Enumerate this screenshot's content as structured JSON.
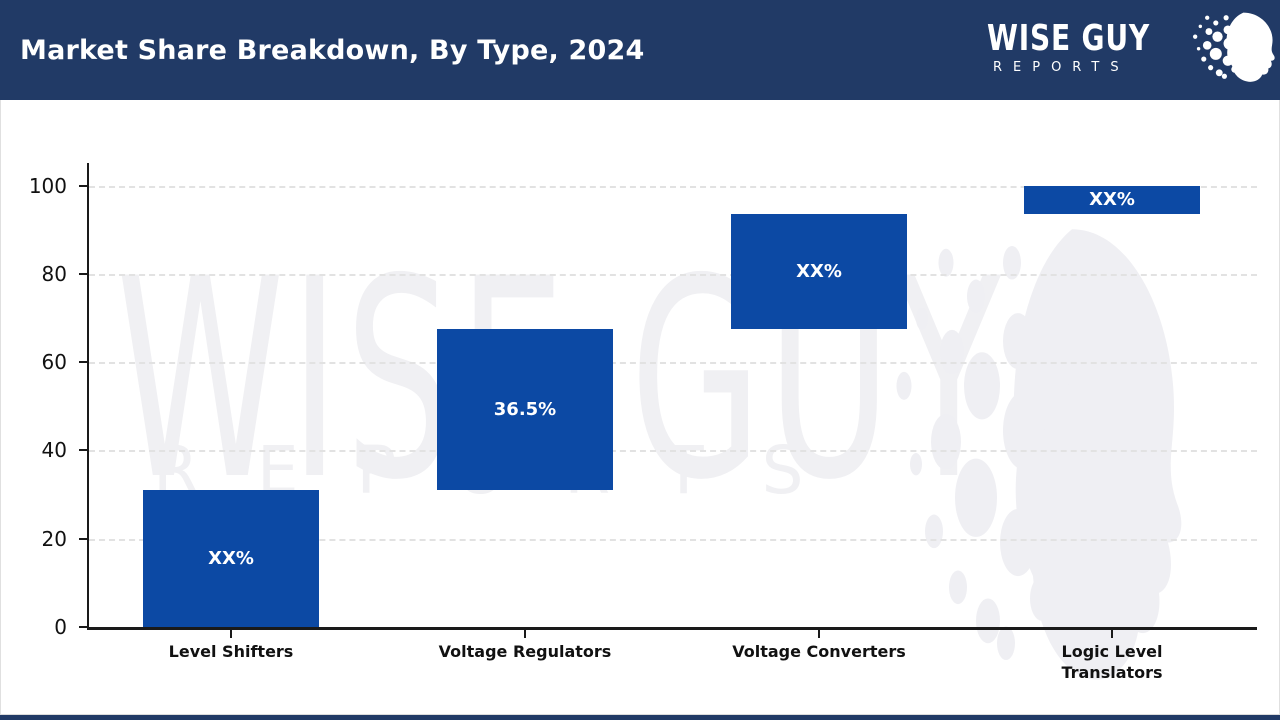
{
  "header": {
    "title": "Market Share Breakdown, By Type, 2024",
    "logo": {
      "line1": "WISE GUY",
      "line2": "REPORTS"
    }
  },
  "watermark": {
    "line1": "WISE GUY",
    "line2": "REPORTS"
  },
  "colors": {
    "header_bg": "#213A66",
    "footer_bg": "#213A66",
    "bar": "#0C49A4",
    "bar_label": "#FFFFFF",
    "grid": "#E2E2E2",
    "axis": "#1A1A1A",
    "watermark": "#F0F0F3"
  },
  "chart_data": {
    "type": "bar",
    "subtype": "waterfall",
    "title": "Market Share Breakdown, By Type, 2024",
    "categories": [
      "Level Shifters",
      "Voltage Regulators",
      "Voltage Converters",
      "Logic Level\nTranslators"
    ],
    "segments": [
      {
        "category": "Level Shifters",
        "start": 0,
        "end": 31,
        "label": "XX%"
      },
      {
        "category": "Voltage Regulators",
        "start": 31,
        "end": 67.5,
        "label": "36.5%"
      },
      {
        "category": "Voltage Converters",
        "start": 67.5,
        "end": 93.5,
        "label": "XX%"
      },
      {
        "category": "Logic Level Translators",
        "start": 93.5,
        "end": 100,
        "label": "XX%"
      }
    ],
    "yticks": [
      0,
      20,
      40,
      60,
      80,
      100
    ],
    "ylim": [
      0,
      105
    ],
    "xlabel": "",
    "ylabel": "",
    "grid": "horizontal-dashed",
    "legend": null
  }
}
